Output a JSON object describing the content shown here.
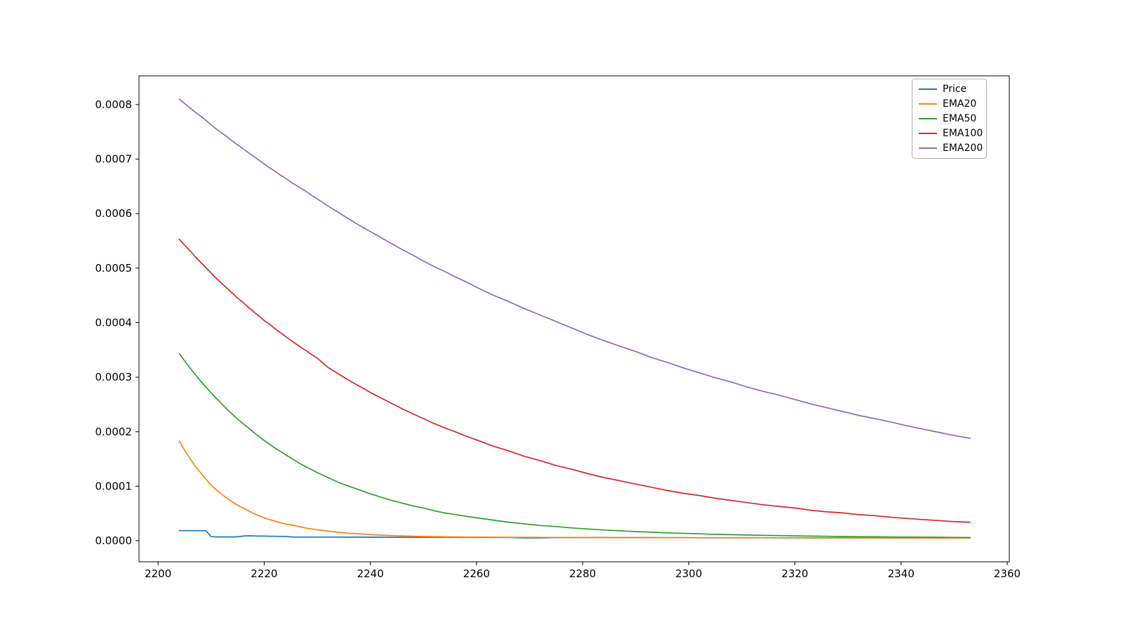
{
  "chart_data": {
    "type": "line",
    "title": "",
    "xlabel": "",
    "ylabel": "",
    "grid": false,
    "legend_position": "upper right",
    "value_unit": 1e-06,
    "xlim": [
      2196.4,
      2360.4
    ],
    "ylim_e6": [
      -38.6,
      852.7
    ],
    "x_ticks": [
      2200,
      2220,
      2240,
      2260,
      2280,
      2300,
      2320,
      2340,
      2360
    ],
    "x_tick_labels": [
      "2200",
      "2220",
      "2240",
      "2260",
      "2280",
      "2300",
      "2320",
      "2340",
      "2360"
    ],
    "y_ticks_e6": [
      0,
      100,
      200,
      300,
      400,
      500,
      600,
      700,
      800
    ],
    "y_tick_labels": [
      "0.0000",
      "0.0001",
      "0.0002",
      "0.0003",
      "0.0004",
      "0.0005",
      "0.0006",
      "0.0007",
      "0.0008"
    ],
    "x": [
      2204,
      2205,
      2206,
      2207,
      2208,
      2209,
      2210,
      2211,
      2212,
      2213,
      2214,
      2215,
      2216,
      2217,
      2218,
      2219,
      2220,
      2221,
      2222,
      2223,
      2224,
      2225,
      2226,
      2227,
      2228,
      2229,
      2230,
      2232,
      2234,
      2236,
      2238,
      2240,
      2242,
      2244,
      2246,
      2248,
      2250,
      2252,
      2254,
      2256,
      2258,
      2260,
      2263,
      2266,
      2269,
      2272,
      2275,
      2278,
      2281,
      2284,
      2287,
      2290,
      2293,
      2296,
      2299,
      2302,
      2305,
      2308,
      2311,
      2314,
      2317,
      2320,
      2323,
      2326,
      2329,
      2332,
      2335,
      2338,
      2341,
      2344,
      2347,
      2350,
      2353
    ],
    "series": [
      {
        "name": "Price",
        "color": "#1f77b4",
        "values_e6": [
          18.5,
          18.5,
          18.5,
          18.5,
          18.5,
          18.5,
          7.5,
          7,
          7,
          7,
          7,
          7.2,
          8.5,
          9,
          8.8,
          8.5,
          8.5,
          8.3,
          8.2,
          8,
          8,
          7,
          6.8,
          6.8,
          6.8,
          6.8,
          6.8,
          6.7,
          6.7,
          6.6,
          6.6,
          6.5,
          6.5,
          6.4,
          6.4,
          6.3,
          6.3,
          6.3,
          6.2,
          6.2,
          6.1,
          6.1,
          6,
          6,
          5.2,
          5.2,
          5.9,
          5.8,
          5.8,
          5.8,
          5.7,
          5.7,
          5.6,
          5.6,
          5.6,
          5.5,
          5.5,
          5.4,
          5.4,
          5.4,
          5.3,
          5.3,
          5.2,
          5.2,
          5.2,
          5.1,
          5.1,
          5,
          5,
          5,
          4.9,
          4.9,
          4.9
        ]
      },
      {
        "name": "EMA20",
        "color": "#ff7f0e",
        "values_e6": [
          183,
          166,
          151,
          137,
          125,
          113,
          102,
          93,
          85,
          78,
          71,
          65,
          60,
          55,
          50,
          46,
          42,
          39,
          36,
          33,
          31,
          29,
          27,
          25,
          23,
          21.5,
          20,
          17.5,
          15.5,
          13.8,
          12.4,
          11.2,
          10.2,
          9.4,
          8.8,
          8.3,
          7.8,
          7.5,
          7.2,
          7,
          6.8,
          6.7,
          6.5,
          6.4,
          6.2,
          6.1,
          6.1,
          6,
          6,
          5.9,
          5.9,
          5.8,
          5.8,
          5.7,
          5.7,
          5.6,
          5.6,
          5.5,
          5.5,
          5.5,
          5.4,
          5.4,
          5.3,
          5.3,
          5.2,
          5.2,
          5.2,
          5.1,
          5.1,
          5,
          5,
          5,
          4.9
        ]
      },
      {
        "name": "EMA50",
        "color": "#2ca02c",
        "values_e6": [
          343,
          330,
          317,
          305,
          293,
          282,
          271,
          261,
          251,
          241,
          232,
          223,
          215,
          207,
          199,
          191,
          184,
          177,
          170,
          164,
          158,
          152,
          146,
          140,
          135,
          130,
          125,
          116,
          107,
          100,
          93,
          86,
          80,
          74,
          69,
          64,
          60,
          55,
          51,
          48,
          45,
          42,
          38,
          34,
          31,
          28,
          26,
          23.5,
          21.6,
          19.8,
          18.2,
          16.8,
          15.6,
          14.5,
          13.5,
          12.6,
          11.8,
          11.1,
          10.5,
          9.9,
          9.4,
          8.9,
          8.5,
          8.1,
          7.8,
          7.4,
          7.2,
          6.9,
          6.7,
          6.5,
          6.3,
          6.1,
          5.9
        ]
      },
      {
        "name": "EMA100",
        "color": "#d62728",
        "values_e6": [
          553,
          542,
          532,
          521,
          511,
          501,
          491,
          481,
          472,
          463,
          454,
          445,
          437,
          428,
          420,
          412,
          404,
          397,
          389,
          382,
          375,
          368,
          361,
          354,
          348,
          341,
          335,
          318,
          306,
          294,
          283,
          272,
          262,
          252,
          242,
          233,
          224,
          215,
          207,
          200,
          192,
          185,
          174,
          165,
          155,
          147,
          138,
          131,
          123,
          116,
          110,
          104,
          98,
          92,
          87,
          83,
          78,
          74,
          70,
          66,
          63,
          60,
          56,
          53,
          51,
          48,
          46,
          43,
          41,
          39,
          37,
          35,
          34
        ]
      },
      {
        "name": "EMA200",
        "color": "#9467bd",
        "values_e6": [
          810,
          802,
          794,
          786,
          779,
          771,
          763,
          755,
          748,
          741,
          733,
          726,
          719,
          712,
          705,
          698,
          691,
          684,
          678,
          671,
          665,
          658,
          652,
          646,
          640,
          633,
          627,
          614,
          602,
          590,
          578,
          567,
          556,
          545,
          534,
          524,
          513,
          503,
          494,
          484,
          475,
          465,
          451,
          439,
          426,
          414,
          402,
          390,
          378,
          367,
          357,
          347,
          336,
          327,
          317,
          308,
          299,
          291,
          282,
          274,
          267,
          259,
          251,
          244,
          237,
          230,
          224,
          218,
          211,
          205,
          199,
          193,
          188
        ]
      }
    ]
  }
}
